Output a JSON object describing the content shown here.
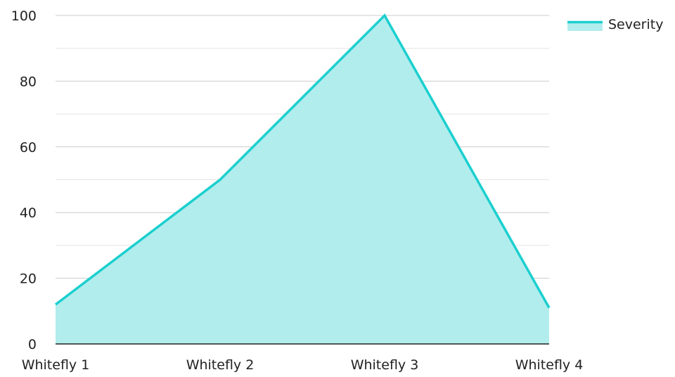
{
  "chart_data": {
    "type": "area",
    "categories": [
      "Whitefly 1",
      "Whitefly 2",
      "Whitefly 3",
      "Whitefly 4"
    ],
    "series": [
      {
        "name": "Severity",
        "values": [
          12,
          50,
          100,
          11
        ]
      }
    ],
    "ylim": [
      0,
      100
    ],
    "yticks": [
      0,
      20,
      40,
      60,
      80,
      100
    ],
    "title": "",
    "xlabel": "",
    "ylabel": "",
    "grid": true,
    "legend": "top-right",
    "colors": {
      "line": "#1ccfcf",
      "fill": "#b2eded",
      "grid": "#cccccc",
      "baseline": "#222222"
    }
  }
}
